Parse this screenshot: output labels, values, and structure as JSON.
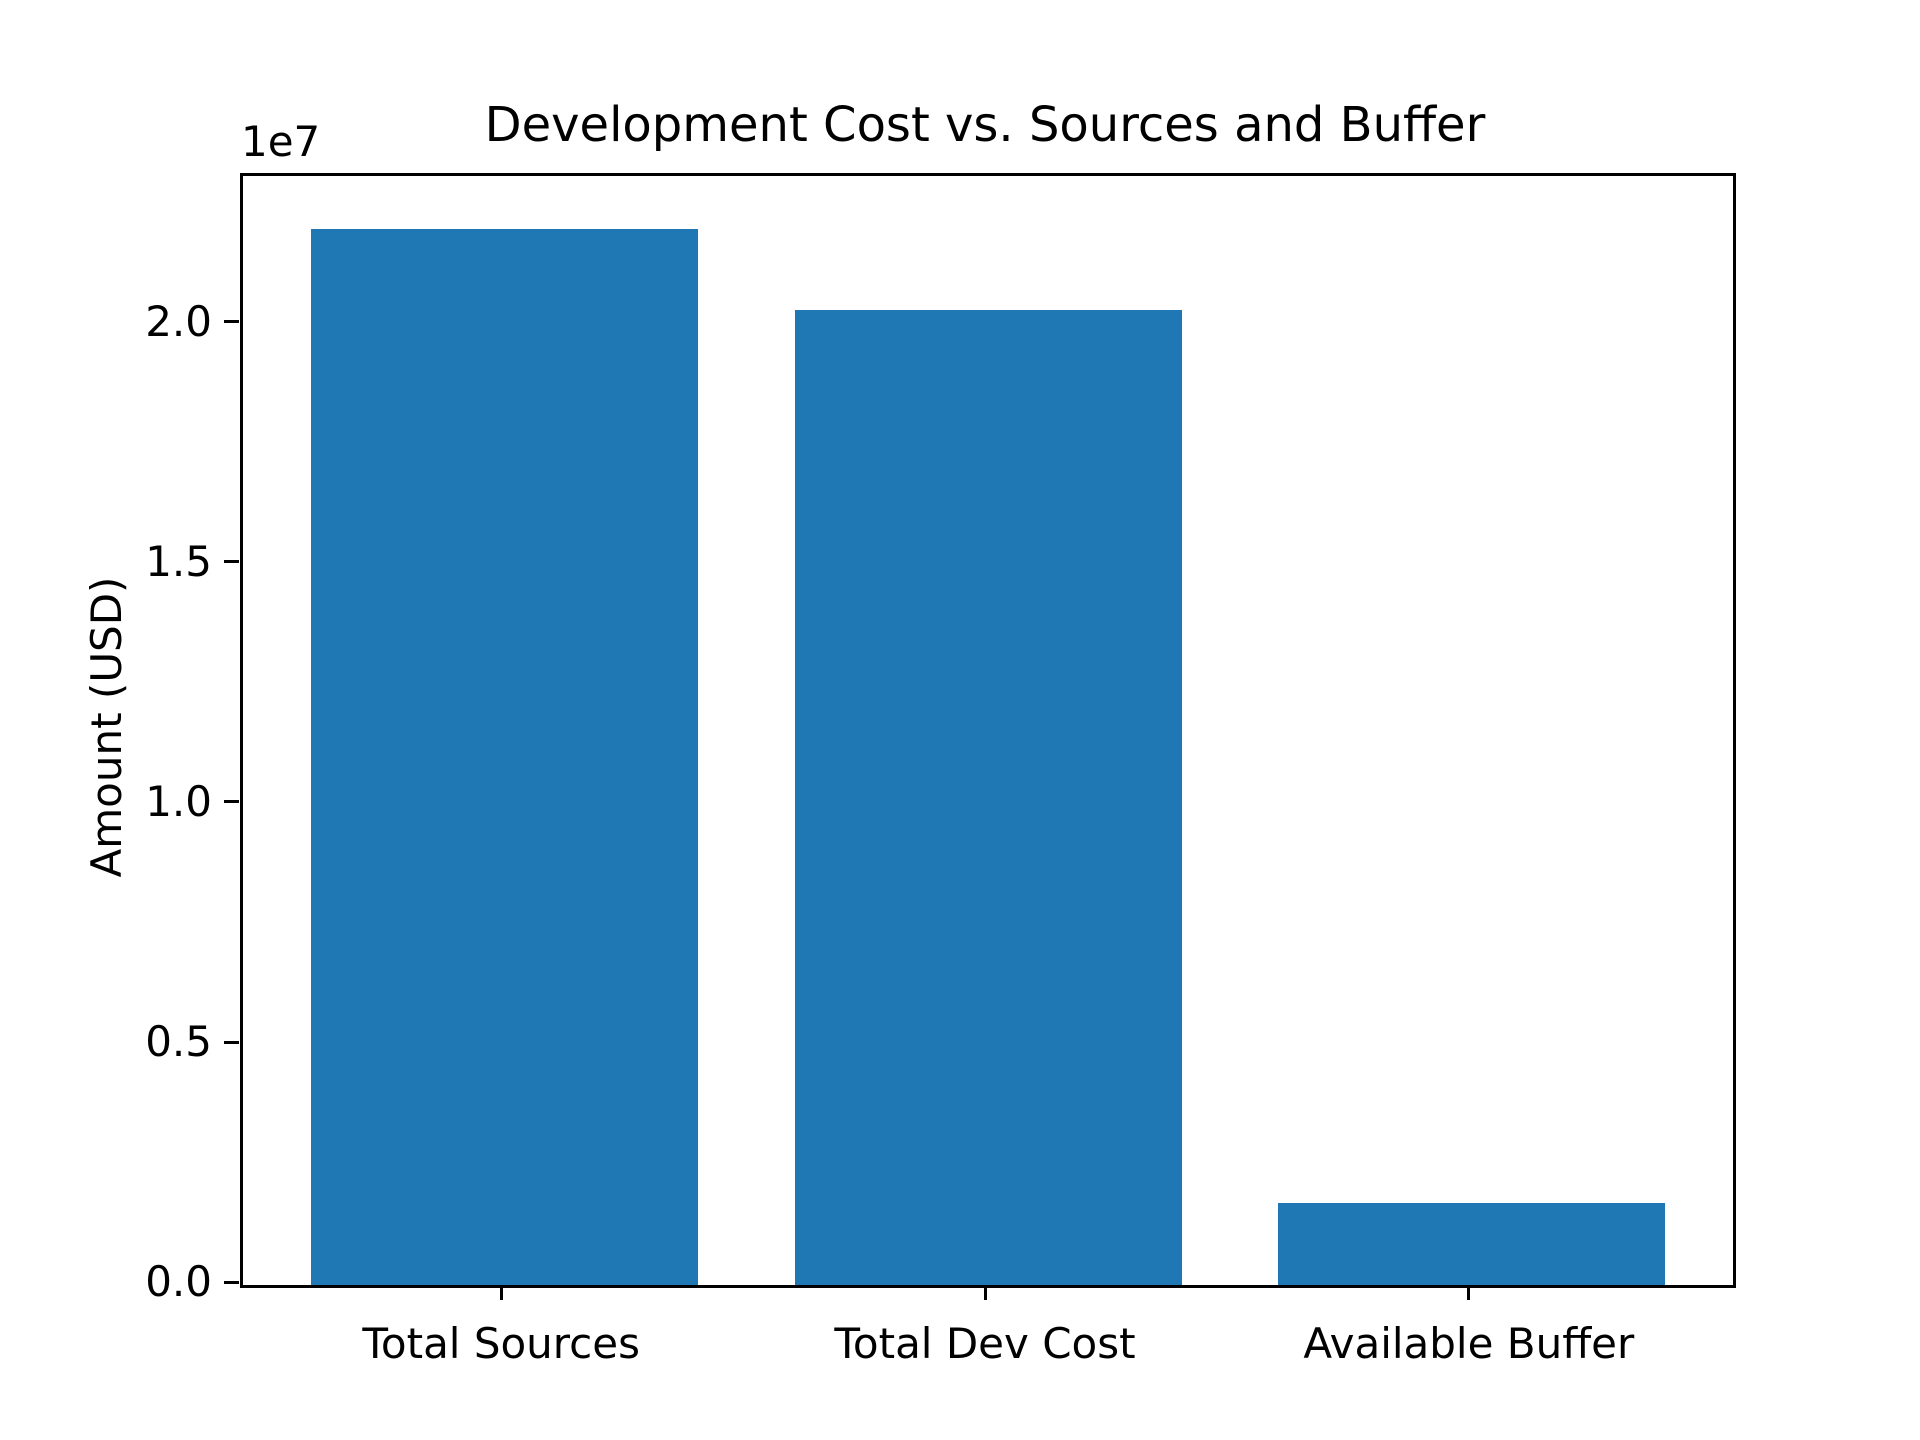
{
  "chart_data": {
    "type": "bar",
    "title": "Development Cost vs. Sources and Buffer",
    "xlabel": "",
    "ylabel": "Amount (USD)",
    "offset_text": "1e7",
    "categories": [
      "Total Sources",
      "Total Dev Cost",
      "Available Buffer"
    ],
    "values": [
      22000000,
      20300000,
      1700000
    ],
    "bar_color": "#1f77b4",
    "ylim": [
      0,
      23100000
    ],
    "yticks": [
      {
        "value": 0,
        "label": "0.0"
      },
      {
        "value": 5000000,
        "label": "0.5"
      },
      {
        "value": 10000000,
        "label": "1.0"
      },
      {
        "value": 15000000,
        "label": "1.5"
      },
      {
        "value": 20000000,
        "label": "2.0"
      }
    ],
    "grid": false,
    "legend_position": "none",
    "bar_width_data_units": 0.8,
    "x_positions": [
      0,
      1,
      2
    ],
    "xlim": [
      -0.54,
      2.54
    ]
  }
}
